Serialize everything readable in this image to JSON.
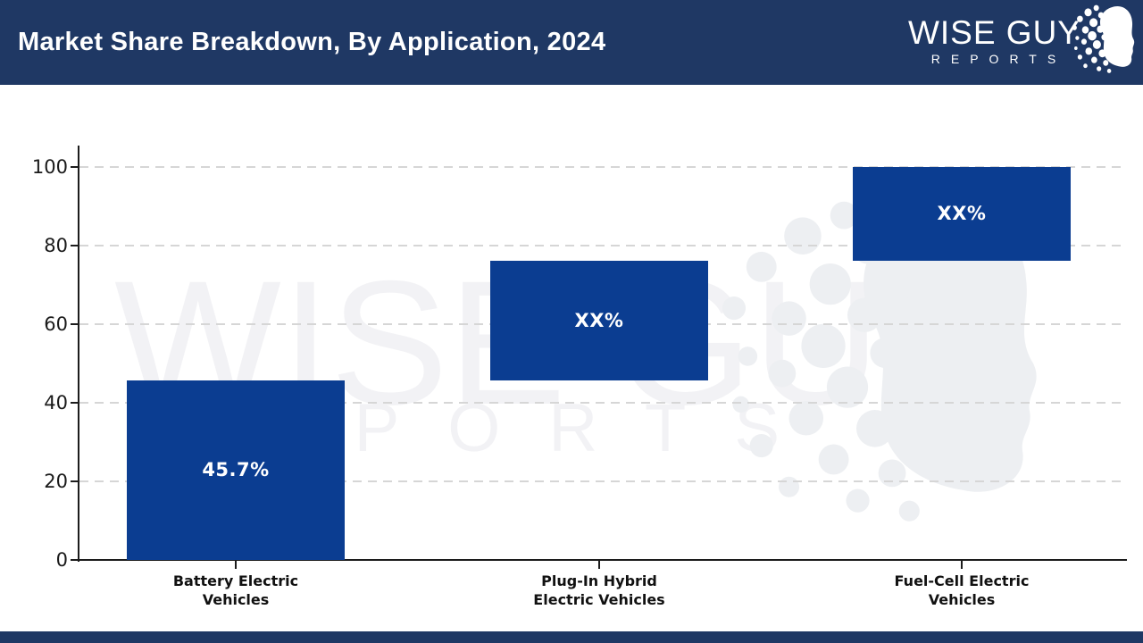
{
  "header": {
    "title": "Market Share Breakdown, By Application, 2024",
    "bg_color": "#1F3864",
    "logo": {
      "line1": "WISE GUY",
      "line2": "REPORTS"
    }
  },
  "watermark": {
    "line1": "WISE GUY",
    "line2": "REPORTS"
  },
  "chart_data": {
    "type": "bar",
    "subtype": "waterfall",
    "title": "Market Share Breakdown, By Application, 2024",
    "categories": [
      "Battery Electric\nVehicles",
      "Plug-In Hybrid\nElectric Vehicles",
      "Fuel-Cell Electric\nVehicles"
    ],
    "segments": [
      {
        "category": "Battery Electric Vehicles",
        "label": "45.7%",
        "start": 0,
        "end": 45.7
      },
      {
        "category": "Plug-In Hybrid Electric Vehicles",
        "label": "XX%",
        "start": 45.7,
        "end": 76.2
      },
      {
        "category": "Fuel-Cell Electric Vehicles",
        "label": "XX%",
        "start": 76.2,
        "end": 100
      }
    ],
    "ylim": [
      0,
      100
    ],
    "yticks": [
      0,
      20,
      40,
      60,
      80,
      100
    ],
    "grid": "horizontal-dashed",
    "legend_position": "none",
    "bar_color": "#0B3D91",
    "bar_label_color": "#FFFFFF",
    "axis_color": "#1C1C1C"
  },
  "footer": {
    "bg_color": "#1F3864"
  }
}
